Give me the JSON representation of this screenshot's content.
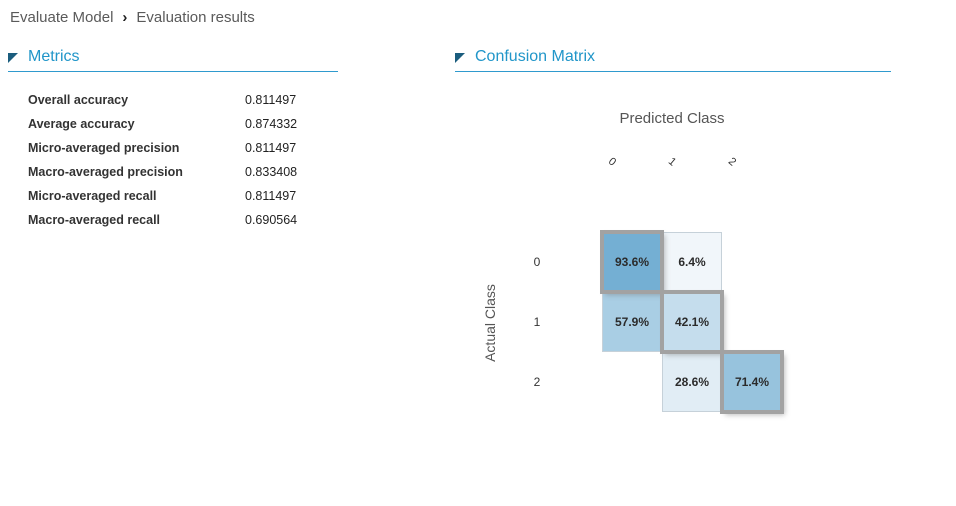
{
  "breadcrumb": {
    "items": [
      "Evaluate Model",
      "Evaluation results"
    ],
    "separator": "›"
  },
  "colors": {
    "accent": "#2196c9",
    "rule": "#2f9ace",
    "collapse-icon": "#1b5d7e",
    "diag-border": "#a2a2a2"
  },
  "metrics": {
    "title": "Metrics",
    "rows": [
      {
        "label": "Overall accuracy",
        "value": "0.811497"
      },
      {
        "label": "Average accuracy",
        "value": "0.874332"
      },
      {
        "label": "Micro-averaged precision",
        "value": "0.811497"
      },
      {
        "label": "Macro-averaged precision",
        "value": "0.833408"
      },
      {
        "label": "Micro-averaged recall",
        "value": "0.811497"
      },
      {
        "label": "Macro-averaged recall",
        "value": "0.690564"
      }
    ]
  },
  "confusion_matrix": {
    "title": "Confusion Matrix",
    "x_axis_title": "Predicted Class",
    "y_axis_title": "Actual Class",
    "col_labels": [
      "0",
      "1",
      "2"
    ],
    "rows": [
      {
        "label": "0",
        "cells": [
          {
            "text": "93.6%",
            "bg": "#74afd3"
          },
          {
            "text": "6.4%",
            "bg": "#f1f6fa"
          },
          {
            "text": "",
            "bg": ""
          }
        ]
      },
      {
        "label": "1",
        "cells": [
          {
            "text": "57.9%",
            "bg": "#a9cee4"
          },
          {
            "text": "42.1%",
            "bg": "#c5dded"
          },
          {
            "text": "",
            "bg": ""
          }
        ]
      },
      {
        "label": "2",
        "cells": [
          {
            "text": "",
            "bg": ""
          },
          {
            "text": "28.6%",
            "bg": "#e1edf5"
          },
          {
            "text": "71.4%",
            "bg": "#97c3dd"
          }
        ]
      }
    ]
  },
  "chart_data": {
    "type": "heatmap",
    "title": "Confusion Matrix",
    "xlabel": "Predicted Class",
    "ylabel": "Actual Class",
    "x_categories": [
      "0",
      "1",
      "2"
    ],
    "y_categories": [
      "0",
      "1",
      "2"
    ],
    "values_percent": [
      [
        93.6,
        6.4,
        null
      ],
      [
        57.9,
        42.1,
        null
      ],
      [
        null,
        28.6,
        71.4
      ]
    ]
  }
}
